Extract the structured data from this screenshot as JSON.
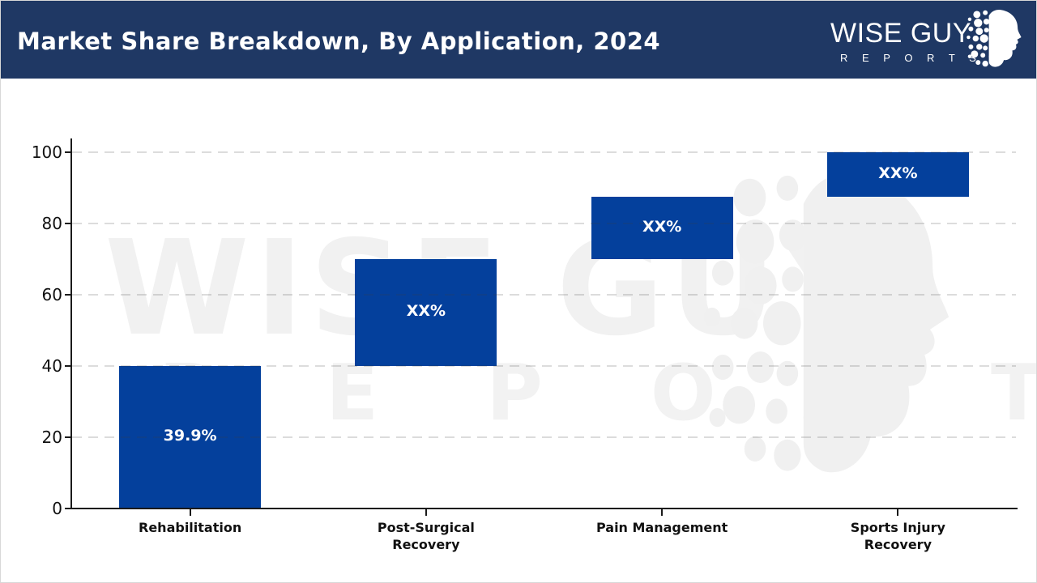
{
  "header": {
    "title": "Market Share Breakdown, By Application, 2024",
    "bg_color": "#1f3864",
    "logo": {
      "line1": "WISE GUY",
      "line2": "R E P O R T S",
      "icon": "dotted-face-profile"
    }
  },
  "watermark": {
    "line1": "WISE GUY",
    "line2": "R E P O R T S",
    "icon": "dotted-face-profile"
  },
  "chart_data": {
    "type": "bar",
    "subtype": "waterfall-floating-segments",
    "title": "Market Share Breakdown, By Application, 2024",
    "categories": [
      "Rehabilitation",
      "Post-Surgical Recovery",
      "Pain Management",
      "Sports Injury Recovery"
    ],
    "category_label_lines": [
      [
        "Rehabilitation"
      ],
      [
        "Post-Surgical",
        "Recovery"
      ],
      [
        "Pain Management"
      ],
      [
        "Sports Injury",
        "Recovery"
      ]
    ],
    "segments": [
      {
        "category": "Rehabilitation",
        "start": 0,
        "end": 39.9,
        "value_label": "39.9%"
      },
      {
        "category": "Post-Surgical Recovery",
        "start": 39.9,
        "end": 70,
        "value_label": "XX%"
      },
      {
        "category": "Pain Management",
        "start": 70,
        "end": 87.5,
        "value_label": "XX%"
      },
      {
        "category": "Sports Injury Recovery",
        "start": 87.5,
        "end": 100,
        "value_label": "XX%"
      }
    ],
    "xlabel": "",
    "ylabel": "",
    "yticks": [
      0,
      20,
      40,
      60,
      80,
      100
    ],
    "ylim": [
      0,
      104
    ],
    "grid": "horizontal-dashed",
    "legend": "none",
    "bar_color": "#04409c",
    "value_label_color": "#ffffff",
    "axis_color": "#1a1a1a"
  }
}
